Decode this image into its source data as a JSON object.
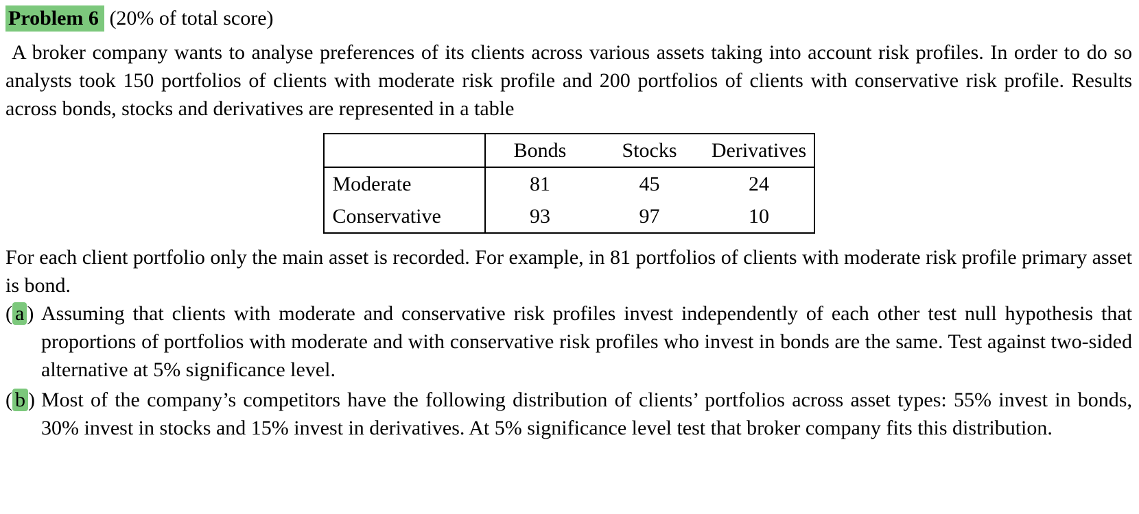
{
  "title": {
    "highlight": "Problem 6",
    "rest": " (20% of total score)"
  },
  "intro": "A broker company wants to analyse preferences of its clients across various assets taking into account risk profiles. In order to do so analysts took 150 portfolios of clients with moderate risk profile and 200 portfolios of clients with conservative risk profile. Results across bonds, stocks and derivatives are represented in a table",
  "table": {
    "headers": [
      "",
      "Bonds",
      "Stocks",
      "Derivatives"
    ],
    "rows": [
      {
        "label": "Moderate",
        "values": [
          "81",
          "45",
          "24"
        ]
      },
      {
        "label": "Conservative",
        "values": [
          "93",
          "97",
          "10"
        ]
      }
    ]
  },
  "middle": "For each client portfolio only the main asset is recorded.  For example, in 81 portfolios of clients with moderate risk profile primary asset is bond.",
  "list_marker": {
    "open": "(",
    "close": ")"
  },
  "items": [
    {
      "label": "a",
      "text": "Assuming that clients with moderate and conservative risk profiles invest independently of each other test null hypothesis that proportions of portfolios with moderate and with conservative risk profiles who invest in bonds are the same.  Test against two-sided alternative at 5% significance level."
    },
    {
      "label": "b",
      "text": "Most of the company’s competitors have the following distribution of clients’ portfolios across asset types: 55% invest in bonds, 30% invest in stocks and 15% invest in derivatives.  At 5% significance level test that broker company fits this distribution."
    }
  ],
  "colors": {
    "highlight_green": "#7cc87c"
  }
}
